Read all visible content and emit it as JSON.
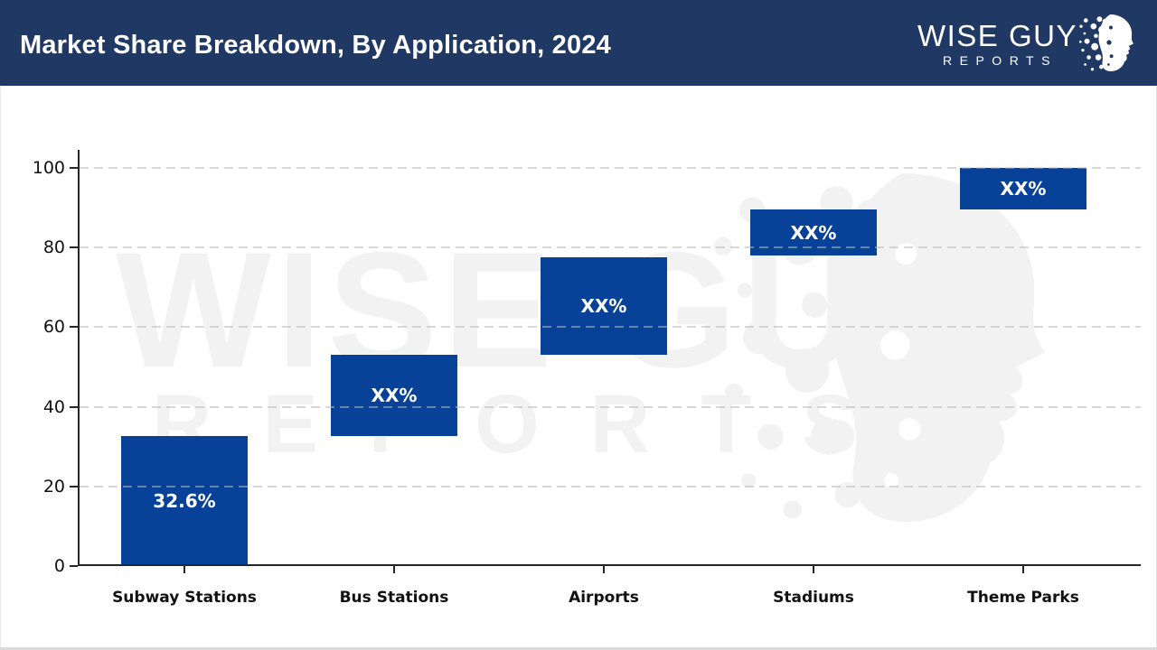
{
  "header": {
    "title": "Market Share Breakdown, By Application, 2024",
    "background_color": "#203864",
    "logo": {
      "line1": "WISE GUY",
      "line2": "REPORTS",
      "icon": "head-profile-dots-icon"
    }
  },
  "watermark": {
    "line1": "WISE GUY",
    "line2": "REPORTS",
    "icon": "head-profile-dots-icon"
  },
  "chart_data": {
    "type": "bar",
    "subtype": "waterfall",
    "title": "Market Share Breakdown, By Application, 2024",
    "categories": [
      "Subway Stations",
      "Bus Stations",
      "Airports",
      "Stadiums",
      "Theme Parks"
    ],
    "segments": [
      {
        "category": "Subway Stations",
        "start": 0,
        "end": 32.6,
        "label": "32.6%"
      },
      {
        "category": "Bus Stations",
        "start": 32.6,
        "end": 53.0,
        "label": "XX%"
      },
      {
        "category": "Airports",
        "start": 53.0,
        "end": 77.5,
        "label": "XX%"
      },
      {
        "category": "Stadiums",
        "start": 78.0,
        "end": 89.5,
        "label": "XX%"
      },
      {
        "category": "Theme Parks",
        "start": 89.5,
        "end": 100,
        "label": "XX%"
      }
    ],
    "yticks": [
      0,
      20,
      40,
      60,
      80,
      100
    ],
    "ylim": [
      0,
      104.5
    ],
    "xlabel": "",
    "ylabel": "",
    "grid": "dashed-horizontal",
    "legend": "none",
    "bar_color": "#074198",
    "axis_color": "#262626",
    "value_label_color": "#ffffff"
  }
}
